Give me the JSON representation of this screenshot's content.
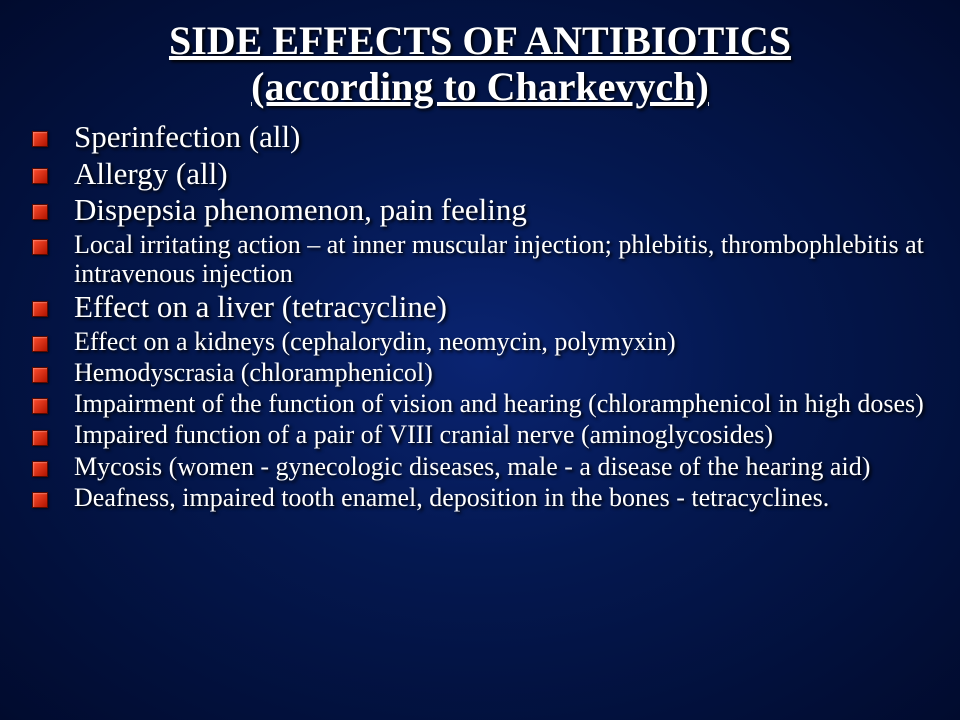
{
  "title": {
    "line1": "SIDE EFFECTS OF ANTIBIOTICS",
    "line2": "(according to Charkevych)"
  },
  "items": [
    {
      "text": "Sperinfection (all)",
      "size": "large"
    },
    {
      "text": "Allergy (all)",
      "size": "large"
    },
    {
      "text": "Dispepsia phenomenon, pain feeling",
      "size": "large"
    },
    {
      "text": "Local irritating action – at inner muscular injection; phlebitis, thrombophlebitis at intravenous injection",
      "size": "small"
    },
    {
      "text": "Effect on a liver (tetracycline)",
      "size": "large"
    },
    {
      "text": "Effect on a kidneys (cephalorydin, neomycin, polymyxin)",
      "size": "small"
    },
    {
      "text": "Hemodyscrasia (chloramphenicol)",
      "size": "small"
    },
    {
      "text": "Impairment of the function of vision and hearing (chloramphenicol in high doses)",
      "size": "small"
    },
    {
      "text": "Impaired function of a pair of VIII cranial nerve (aminoglycosides)",
      "size": "small"
    },
    {
      "text": "Mycosis (women - gynecologic diseases, male - a disease of the hearing aid)",
      "size": "small"
    },
    {
      "text": " Deafness, impaired tooth enamel, deposition in the bones - tetracyclines.",
      "size": "small"
    }
  ],
  "style": {
    "title_fontsize": 40,
    "large_fontsize": 31,
    "small_fontsize": 26,
    "text_color": "#ffffff",
    "bullet_color": "#d62e12",
    "bg_center": "#0a2472",
    "bg_edge": "#010b2e",
    "font_family": "Times New Roman"
  }
}
